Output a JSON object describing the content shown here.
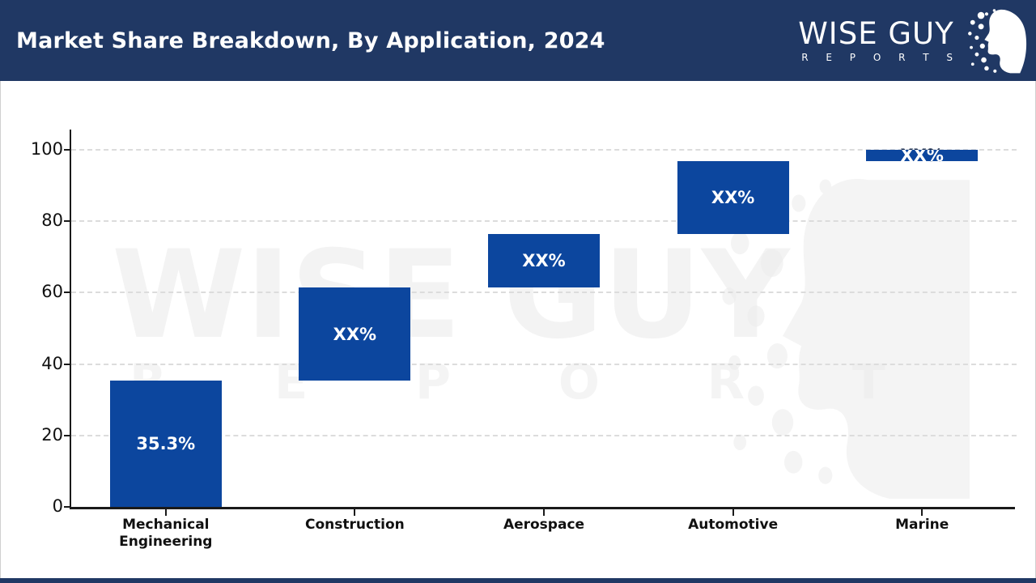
{
  "header": {
    "title": "Market Share Breakdown, By Application, 2024",
    "bg_color": "#203864",
    "logo": {
      "wordmark": "WISE GUY",
      "subtext": "R E P O R T S"
    }
  },
  "watermark": {
    "line1": "WISE GUY",
    "line2": "R E P O R T S"
  },
  "chart_data": {
    "type": "bar",
    "subtype": "waterfall",
    "title": "Market Share Breakdown, By Application, 2024",
    "xlabel": "",
    "ylabel": "",
    "categories": [
      "Mechanical Engineering",
      "Construction",
      "Aerospace",
      "Automotive",
      "Marine"
    ],
    "segments": [
      {
        "category": "Mechanical Engineering",
        "start": 0,
        "end": 35.3,
        "value": 35.3,
        "label": "35.3%"
      },
      {
        "category": "Construction",
        "start": 35.3,
        "end": 61.5,
        "value": 26.2,
        "label": "XX%"
      },
      {
        "category": "Aerospace",
        "start": 61.5,
        "end": 76.5,
        "value": 15.0,
        "label": "XX%"
      },
      {
        "category": "Automotive",
        "start": 76.5,
        "end": 96.9,
        "value": 20.4,
        "label": "XX%"
      },
      {
        "category": "Marine",
        "start": 96.9,
        "end": 100,
        "value": 3.1,
        "label": "XX%"
      }
    ],
    "yticks": [
      0,
      20,
      40,
      60,
      80,
      100
    ],
    "ylim": [
      0,
      105
    ],
    "bar_color": "#0c469e",
    "label_color": "#ffffff",
    "grid": "horizontal dashed",
    "legend": "none"
  },
  "colors": {
    "header_navy": "#203864",
    "bar_blue": "#0c469e",
    "grid_gray": "#dcdcdc",
    "watermark_gray": "#f3f3f3"
  }
}
